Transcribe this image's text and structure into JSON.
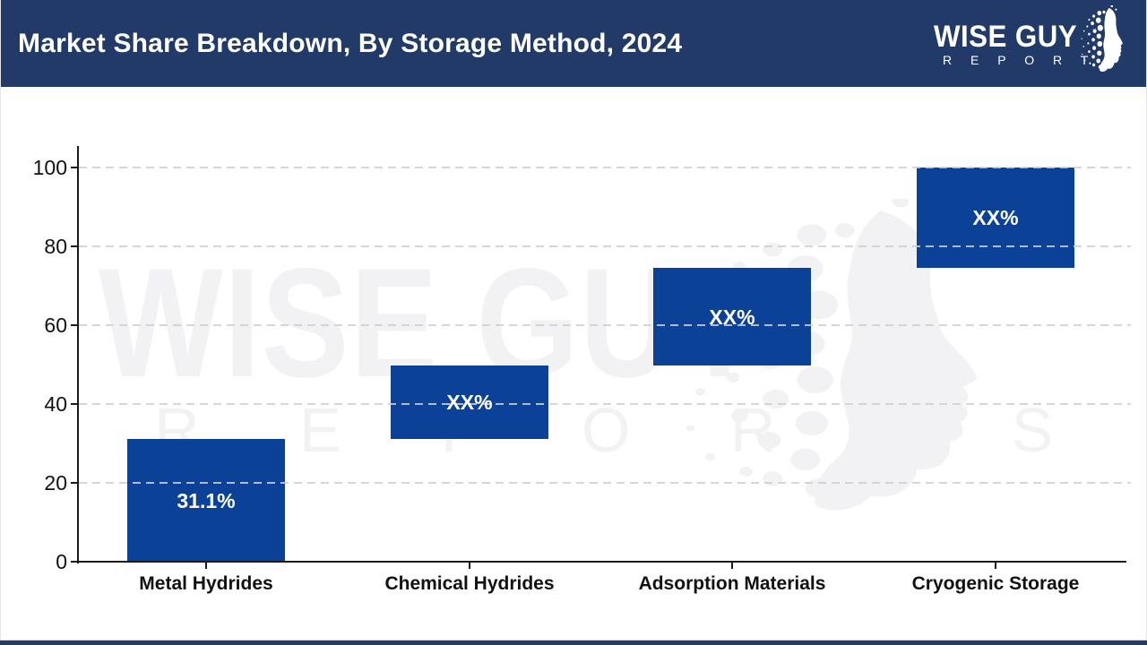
{
  "header": {
    "title": "Market Share Breakdown, By Storage Method, 2024",
    "logo": {
      "wordmark": "WISE GUY",
      "subtext": "R E P O R T S"
    }
  },
  "watermark": {
    "wordmark": "WISE GUY",
    "subtext": "R E P O R T S"
  },
  "colors": {
    "header_bg": "#223A68",
    "footer_bg": "#223A68",
    "bar": "#0B4297",
    "bar_label": "#FFFFFF",
    "grid": "#CFCFCF",
    "axis": "#1A1A1A",
    "watermark": "#F2F2F4"
  },
  "chart_data": {
    "type": "bar",
    "subtype": "floating-waterfall",
    "title": "Market Share Breakdown, By Storage Method, 2024",
    "categories": [
      "Metal Hydrides",
      "Chemical Hydrides",
      "Adsorption Materials",
      "Cryogenic Storage"
    ],
    "segments": [
      {
        "category": "Metal Hydrides",
        "label": "31.1%",
        "start": 0,
        "end": 31.1
      },
      {
        "category": "Chemical Hydrides",
        "label": "XX%",
        "start": 31.1,
        "end": 49.8
      },
      {
        "category": "Adsorption Materials",
        "label": "XX%",
        "start": 49.8,
        "end": 74.5
      },
      {
        "category": "Cryogenic Storage",
        "label": "XX%",
        "start": 74.5,
        "end": 100
      }
    ],
    "ylim": [
      0,
      100
    ],
    "yticks": [
      0,
      20,
      40,
      60,
      80,
      100
    ],
    "xlabel": "",
    "ylabel": "",
    "grid": "horizontal-dashed",
    "legend": "none"
  }
}
